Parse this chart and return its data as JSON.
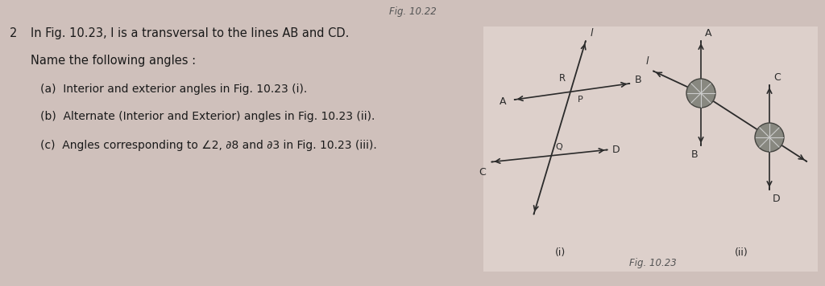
{
  "fig_title_top": "Fig. 10.22",
  "fig_title_bottom": "Fig. 10.23",
  "question_number": "2",
  "question_text": "In Fig. 10.23, l is a transversal to the lines AB and CD.",
  "subheading": "Name the following angles :",
  "parts": [
    "(a)  Interior and exterior angles in Fig. 10.23 (i).",
    "(b)  Alternate (Interior and Exterior) angles in Fig. 10.23 (ii).",
    "(c)  Angles corresponding to ∠2, ∂8 and ∂3 in Fig. 10.23 (iii)."
  ],
  "bg_color": "#cfc0bb",
  "panel_color": "#ddd0cb",
  "text_color": "#1a1a1a",
  "fig_label_i": "(i)",
  "fig_label_ii": "(ii)"
}
